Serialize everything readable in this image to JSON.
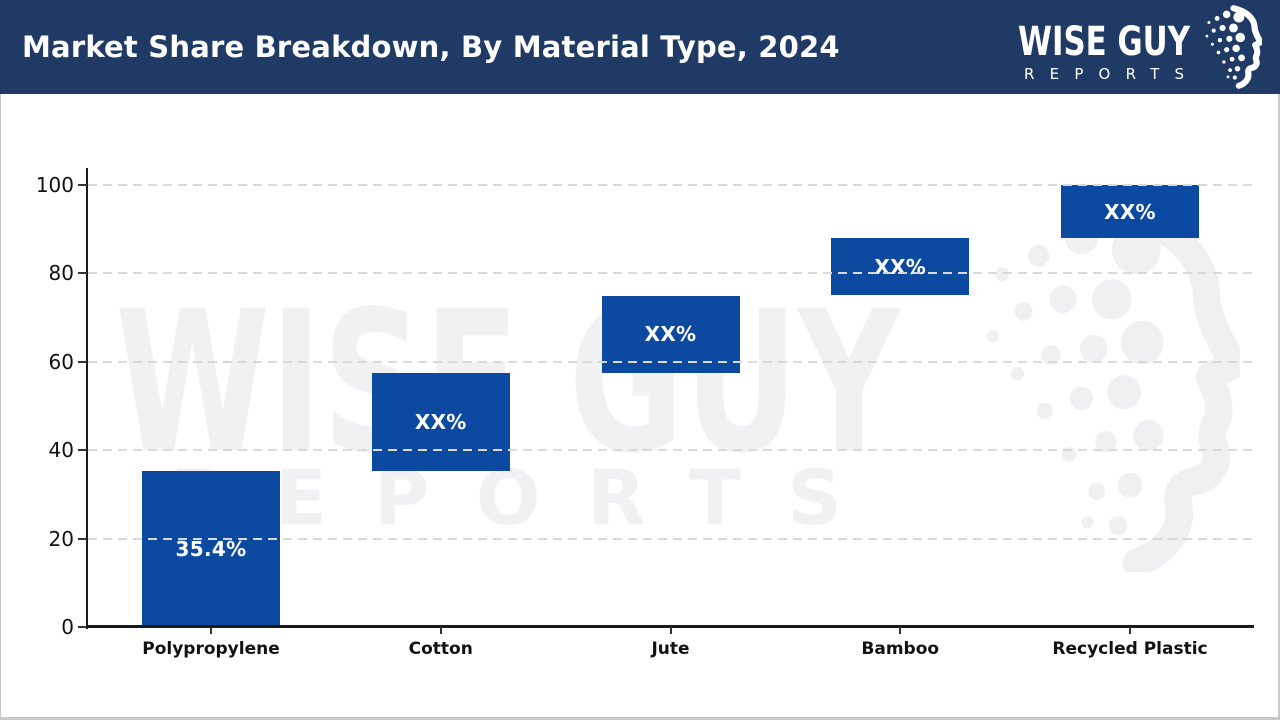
{
  "header": {
    "title": "Market Share Breakdown, By Material Type, 2024",
    "logo": {
      "name": "WISE GUY",
      "sub": "REPORTS"
    }
  },
  "watermark": {
    "name": "WISE GUY",
    "sub": "REPORTS"
  },
  "colors": {
    "header_bg": "#203a66",
    "bar": "#0c4aa2",
    "axis": "#1a1a1a",
    "grid": "#d9d9d9",
    "watermark": "#f0f0f3"
  },
  "chart_data": {
    "type": "bar",
    "subtype": "waterfall",
    "title": "Market Share Breakdown, By Material Type, 2024",
    "categories": [
      "Polypropylene",
      "Cotton",
      "Jute",
      "Bamboo",
      "Recycled Plastic"
    ],
    "segments": [
      {
        "category": "Polypropylene",
        "start": 0,
        "end": 35.4,
        "label": "35.4%"
      },
      {
        "category": "Cotton",
        "start": 35.4,
        "end": 57.5,
        "label": "XX%"
      },
      {
        "category": "Jute",
        "start": 57.5,
        "end": 75,
        "label": "XX%"
      },
      {
        "category": "Bamboo",
        "start": 75,
        "end": 88,
        "label": "XX%"
      },
      {
        "category": "Recycled Plastic",
        "start": 88,
        "end": 100,
        "label": "XX%"
      }
    ],
    "xlabel": "",
    "ylabel": "",
    "ylim": [
      0,
      100
    ],
    "yticks": [
      0,
      20,
      40,
      60,
      80,
      100
    ],
    "grid": "horizontal-dashed",
    "legend": "none",
    "bar_color": "#0c4aa2",
    "bar_label_color": "#ffffff"
  }
}
